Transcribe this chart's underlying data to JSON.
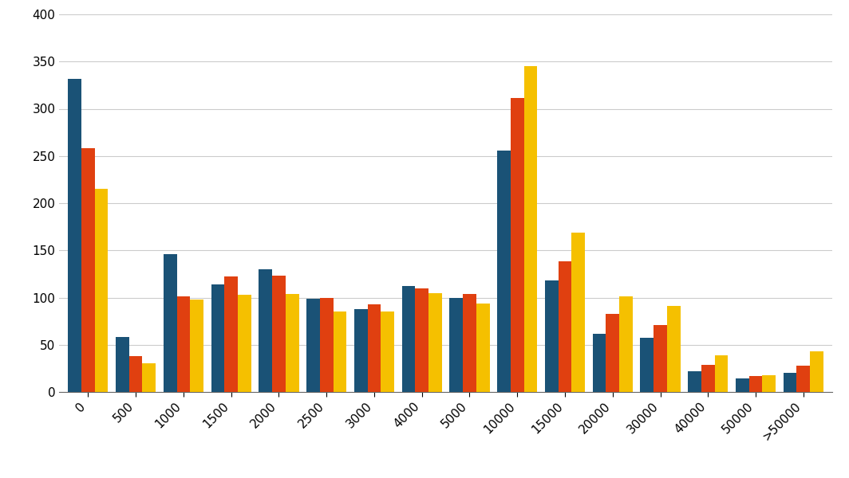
{
  "categories": [
    "0",
    "500",
    "1000",
    "1500",
    "2000",
    "2500",
    "3000",
    "4000",
    "5000",
    "10000",
    "15000",
    "20000",
    "30000",
    "40000",
    "50000",
    ">50000"
  ],
  "blue": [
    332,
    58,
    146,
    114,
    130,
    99,
    88,
    112,
    100,
    256,
    118,
    62,
    57,
    22,
    14,
    20
  ],
  "orange": [
    258,
    38,
    101,
    122,
    123,
    100,
    93,
    110,
    104,
    311,
    138,
    83,
    71,
    29,
    17,
    28
  ],
  "yellow": [
    215,
    30,
    98,
    103,
    104,
    85,
    85,
    105,
    94,
    345,
    169,
    101,
    91,
    39,
    18,
    43
  ],
  "blue_color": "#1a5276",
  "orange_color": "#e04010",
  "yellow_color": "#f5c000",
  "ylim": [
    0,
    400
  ],
  "yticks": [
    0,
    50,
    100,
    150,
    200,
    250,
    300,
    350,
    400
  ],
  "background_color": "#ffffff",
  "grid_color": "#cccccc"
}
